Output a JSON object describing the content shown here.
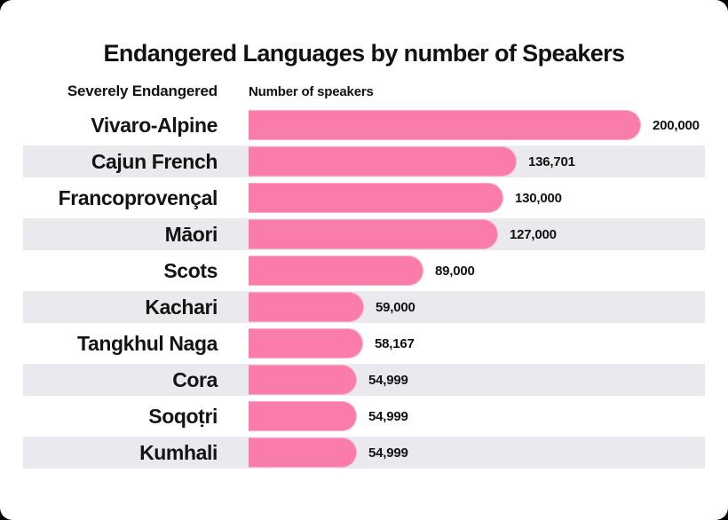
{
  "page": {
    "background": "#000000",
    "card_background": "#ffffff"
  },
  "title": "Endangered Languages by number of Speakers",
  "columns": {
    "category": "Severely Endangered",
    "value": "Number of speakers"
  },
  "colors": {
    "bar_fill": "#fa7cab",
    "bar_outline": "#fbaac9",
    "alt_row_background": "#e9e9ee",
    "text": "#121212"
  },
  "chart_data": {
    "type": "bar",
    "orientation": "horizontal",
    "title": "Endangered Languages by number of Speakers",
    "category_axis_label": "Severely Endangered",
    "value_axis_label": "Number of speakers",
    "categories": [
      "Vivaro-Alpine",
      "Cajun French",
      "Francoprovençal",
      "Māori",
      "Scots",
      "Kachari",
      "Tangkhul Naga",
      "Cora",
      "Soqoṭri",
      "Kumhali"
    ],
    "values": [
      200000,
      136701,
      130000,
      127000,
      89000,
      59000,
      58167,
      54999,
      54999,
      54999
    ],
    "value_labels": [
      "200,000",
      "136,701",
      "130,000",
      "127,000",
      "89,000",
      "59,000",
      "58,167",
      "54,999",
      "54,999",
      "54,999"
    ],
    "xlim": [
      0,
      200000
    ],
    "grid": false,
    "legend": false,
    "bar_color": "#fa7cab",
    "row_striping": "alternate rows shaded, starting with second row"
  }
}
